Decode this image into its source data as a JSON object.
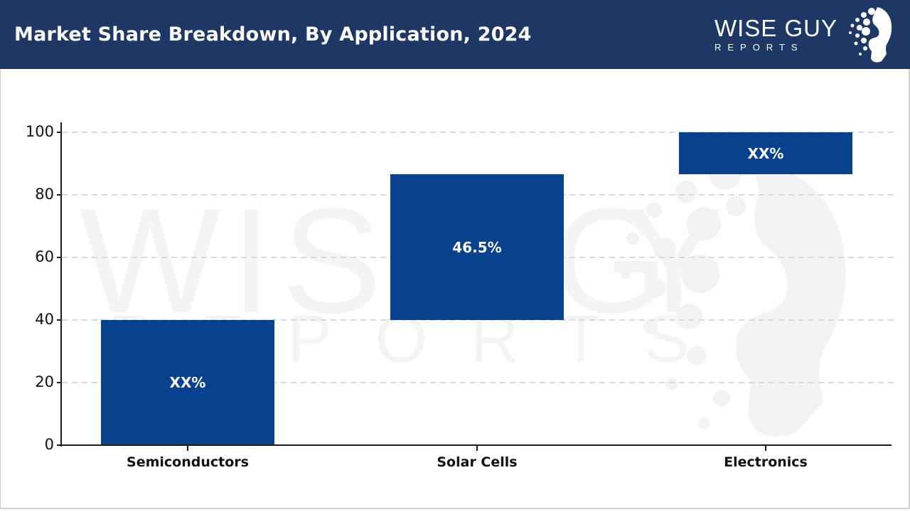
{
  "page": {
    "bg": "#ffffff",
    "border_color": "#cfcfcf"
  },
  "header": {
    "bg": "#1f3764",
    "title": "Market Share Breakdown, By Application, 2024",
    "logo": {
      "name": "WISE GUY",
      "sub": "REPORTS"
    }
  },
  "watermark": {
    "line1": "WISE G",
    "line1b": "Y",
    "line2": "REPORTS"
  },
  "chart_data": {
    "type": "bar",
    "variant": "waterfall",
    "title": "Market Share Breakdown, By Application, 2024",
    "categories": [
      "Semiconductors",
      "Solar Cells",
      "Electronics"
    ],
    "bars": [
      {
        "category": "Semiconductors",
        "start": 0,
        "end": 40,
        "label": "XX%"
      },
      {
        "category": "Solar Cells",
        "start": 40,
        "end": 86.5,
        "label": "46.5%"
      },
      {
        "category": "Electronics",
        "start": 86.5,
        "end": 100,
        "label": "XX%"
      }
    ],
    "ylim": [
      0,
      100
    ],
    "yticks": [
      0,
      20,
      40,
      60,
      80,
      100
    ],
    "grid": "horizontal-dashed",
    "legend": "none",
    "bar_color": "#08428f",
    "bar_label_color": "#ffffff",
    "xlabel": "",
    "ylabel": ""
  }
}
